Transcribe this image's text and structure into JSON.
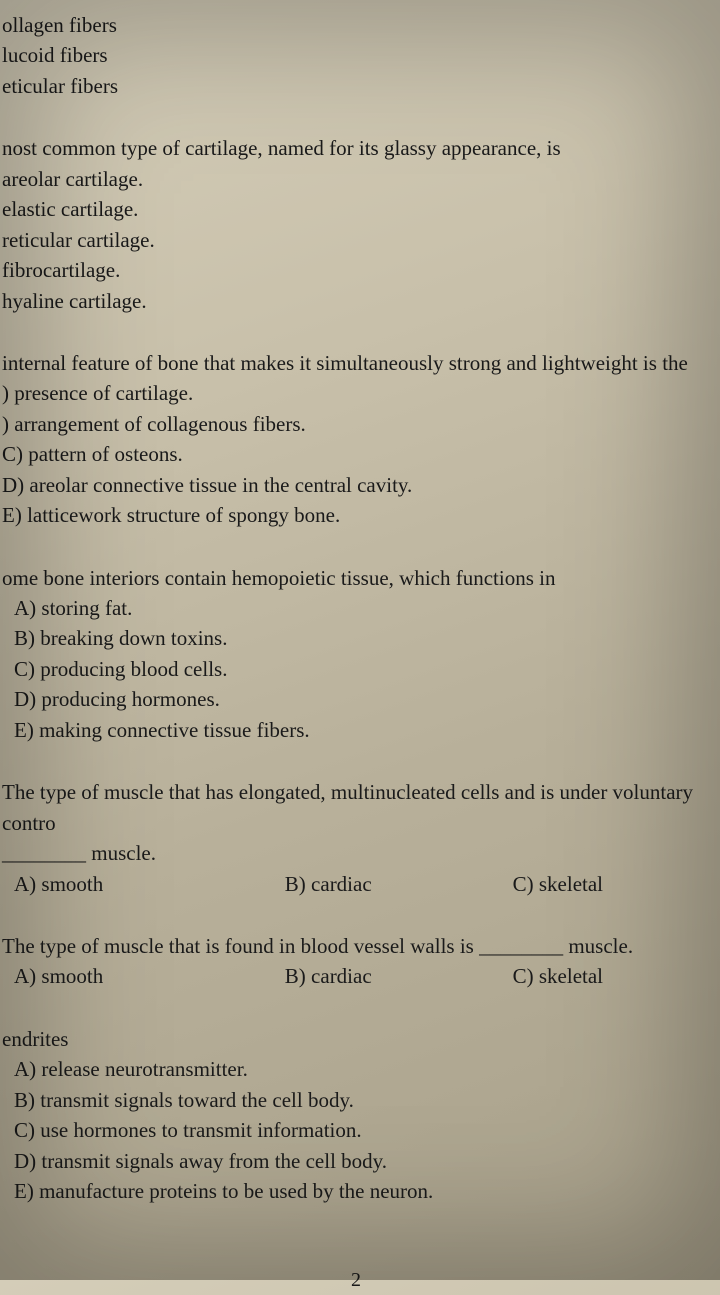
{
  "fibers": {
    "a": "ollagen fibers",
    "b": "lucoid fibers",
    "c": "eticular fibers"
  },
  "q_cartilage": {
    "stem": "nost common type of cartilage, named for its glassy appearance, is",
    "a": "areolar cartilage.",
    "b": "elastic cartilage.",
    "c": "reticular cartilage.",
    "d": "fibrocartilage.",
    "e": "hyaline cartilage."
  },
  "q_bone_feature": {
    "stem": "internal feature of bone that makes it simultaneously strong and lightweight is the",
    "a": ") presence of cartilage.",
    "b": ") arrangement of collagenous fibers.",
    "c": "C) pattern of osteons.",
    "d": "D) areolar connective tissue in the central cavity.",
    "e": "E) latticework structure of spongy bone."
  },
  "q_hemopoietic": {
    "stem": "ome bone interiors contain hemopoietic tissue, which functions in",
    "a": "A) storing fat.",
    "b": "B) breaking down toxins.",
    "c": "C) producing blood cells.",
    "d": "D) producing hormones.",
    "e": "E) making connective tissue fibers."
  },
  "q_muscle_voluntary": {
    "stem1": "The type of muscle that has elongated, multinucleated cells and is under voluntary contro",
    "stem2": "________ muscle.",
    "a": "A) smooth",
    "b": "B) cardiac",
    "c": "C) skeletal"
  },
  "q_muscle_vessel": {
    "stem": "The type of muscle that is found in blood vessel walls is ________ muscle.",
    "a": "A) smooth",
    "b": "B) cardiac",
    "c": "C) skeletal"
  },
  "q_dendrites": {
    "stem": "endrites",
    "a": "A) release neurotransmitter.",
    "b": "B) transmit signals toward the cell body.",
    "c": "C) use hormones to transmit information.",
    "d": "D) transmit signals away from the cell body.",
    "e": "E) manufacture proteins to be used by the neuron."
  },
  "page_number": "2"
}
